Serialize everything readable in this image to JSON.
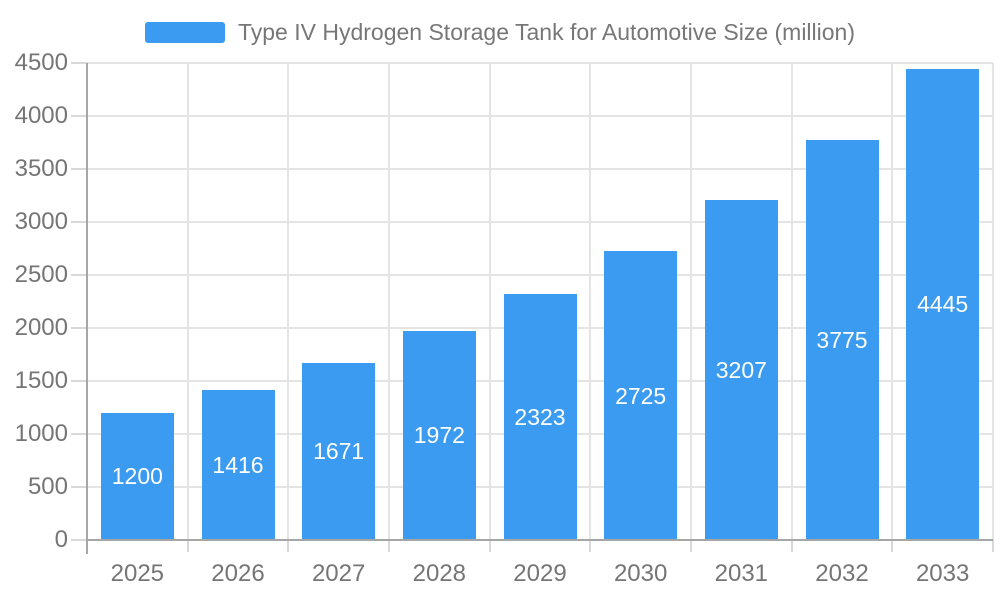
{
  "chart_data": {
    "type": "bar",
    "title": "Type IV Hydrogen Storage Tank for Automotive Size (million)",
    "legend": {
      "position": "top",
      "entries": [
        "Type IV Hydrogen Storage Tank for Automotive Size (million)"
      ]
    },
    "categories": [
      "2025",
      "2026",
      "2027",
      "2028",
      "2029",
      "2030",
      "2031",
      "2032",
      "2033"
    ],
    "series": [
      {
        "name": "Type IV Hydrogen Storage Tank for Automotive Size (million)",
        "values": [
          1200,
          1416,
          1671,
          1972,
          2323,
          2725,
          3207,
          3775,
          4445
        ]
      }
    ],
    "value_labels_shown": true,
    "xlabel": "",
    "ylabel": "",
    "ylim": [
      0,
      4500
    ],
    "yticks": [
      0,
      500,
      1000,
      1500,
      2000,
      2500,
      3000,
      3500,
      4000,
      4500
    ],
    "grid": true,
    "colors": {
      "bar": "#3B9BF0",
      "grid": "#E4E4E4",
      "axis": "#A6A6A6",
      "tick": "#D8D8D8",
      "axis_text": "#757575",
      "legend_text": "#777777",
      "value_text": "#FFFFFF",
      "background": "#FFFFFF"
    }
  }
}
